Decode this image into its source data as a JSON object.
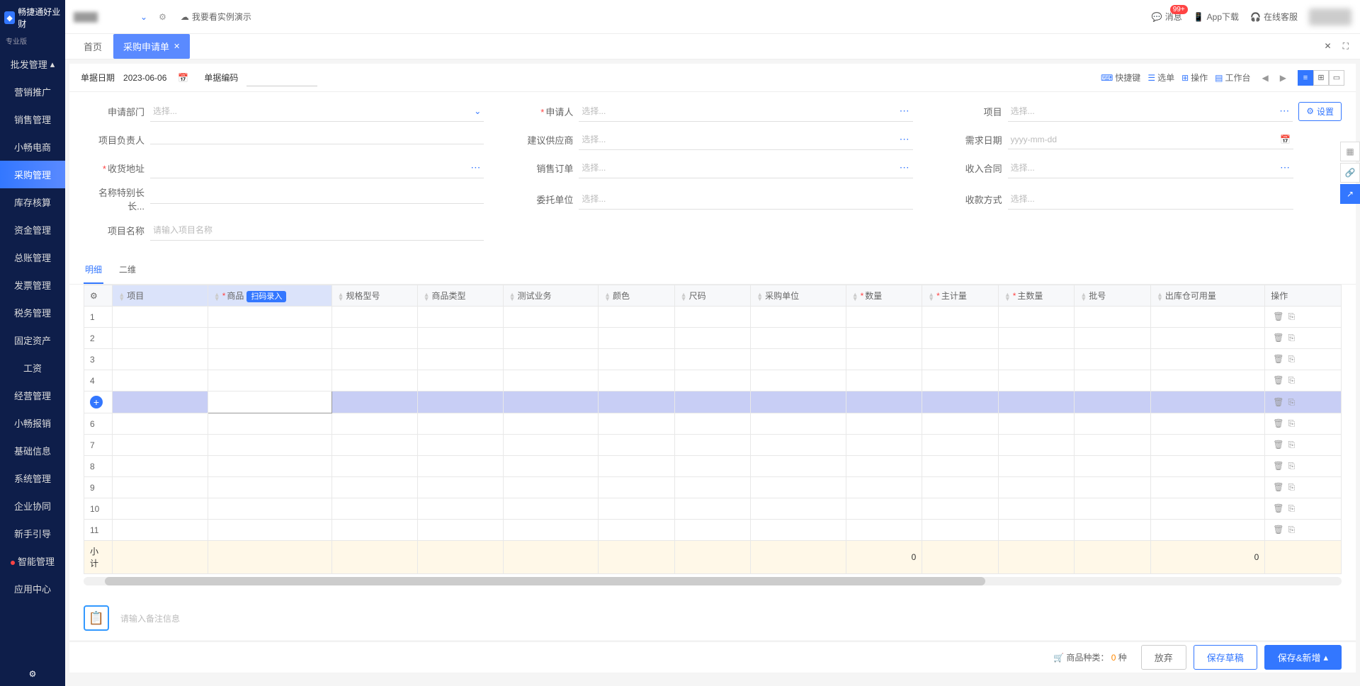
{
  "logo": {
    "name": "畅捷通好业财",
    "edition": "专业版"
  },
  "sidebar": {
    "header": "批发管理",
    "items": [
      "营销推广",
      "销售管理",
      "小畅电商",
      "采购管理",
      "库存核算",
      "资金管理",
      "总账管理",
      "发票管理",
      "税务管理",
      "固定资产",
      "工资",
      "经营管理",
      "小畅报销",
      "基础信息",
      "系统管理",
      "企业协同",
      "新手引导",
      "智能管理",
      "应用中心"
    ],
    "activeIndex": 3,
    "redIndex": 17
  },
  "topbar": {
    "org": "████",
    "demo": "我要看实例演示",
    "msg": "消息",
    "msgBadge": "99+",
    "app": "App下载",
    "cs": "在线客服"
  },
  "tabs": {
    "home": "首页",
    "active": "采购申请单"
  },
  "toolbar": {
    "dateLabel": "单据日期",
    "date": "2023-06-06",
    "codeLabel": "单据编码",
    "shortcut": "快捷键",
    "select": "选单",
    "op": "操作",
    "bench": "工作台"
  },
  "form": {
    "dept": "申请部门",
    "applicant": "申请人",
    "project": "项目",
    "pm": "项目负责人",
    "supplier": "建议供应商",
    "needDate": "需求日期",
    "addr": "收货地址",
    "salesOrder": "销售订单",
    "contract": "收入合同",
    "longname": "名称特别长长...",
    "entrust": "委托单位",
    "payway": "收款方式",
    "projName": "项目名称",
    "ph_select": "选择...",
    "ph_date": "yyyy-mm-dd",
    "ph_projname": "请输入项目名称",
    "settings": "设置"
  },
  "innerTabs": {
    "detail": "明细",
    "twod": "二维"
  },
  "table": {
    "cols": [
      "项目",
      "商品",
      "规格型号",
      "商品类型",
      "测试业务",
      "颜色",
      "尺码",
      "采购单位",
      "数量",
      "主计量",
      "主数量",
      "批号",
      "出库仓可用量"
    ],
    "required": [
      false,
      true,
      false,
      false,
      false,
      false,
      false,
      false,
      true,
      true,
      true,
      false,
      false
    ],
    "scan": "扫码录入",
    "opCol": "操作",
    "rows": 11,
    "selectedRow": 5,
    "subtotal": "小计",
    "sub_qty": "0",
    "sub_avail": "0"
  },
  "remark": {
    "ph": "请输入备注信息"
  },
  "footer": {
    "kinds": "商品种类：",
    "count": "0",
    "unit": "种",
    "discard": "放弃",
    "draft": "保存草稿",
    "save": "保存&新增"
  }
}
